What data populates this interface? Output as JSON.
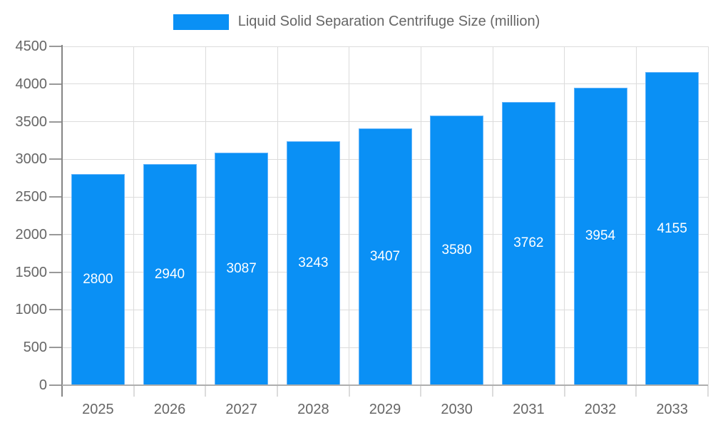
{
  "chart_data": {
    "type": "bar",
    "title": "Liquid Solid Separation Centrifuge Size (million)",
    "categories": [
      "2025",
      "2026",
      "2027",
      "2028",
      "2029",
      "2030",
      "2031",
      "2032",
      "2033"
    ],
    "series": [
      {
        "name": "Liquid Solid Separation Centrifuge Size (million)",
        "values": [
          2800,
          2940,
          3087,
          3243,
          3407,
          3580,
          3762,
          3954,
          4155
        ]
      }
    ],
    "bar_labels": [
      "2800",
      "2940",
      "3087",
      "3243",
      "3407",
      "3580",
      "3762",
      "3954",
      "4155"
    ],
    "xlabel": "",
    "ylabel": "",
    "ylim": [
      0,
      4500
    ],
    "yticks": [
      0,
      500,
      1000,
      1500,
      2000,
      2500,
      3000,
      3500,
      4000,
      4500
    ],
    "grid": true,
    "legend_position": "top-center",
    "colors": {
      "bar_fill": "#0A90F5",
      "bar_border": "#64B4FA",
      "grid_line": "#DCDCDC",
      "y_axis_line": "#858585",
      "x_axis_line": "#AEAEAE",
      "y_tick": "#999999",
      "axis_text": "#666666",
      "bar_label_text": "#FFFFFF",
      "background": "#FFFFFF"
    }
  }
}
